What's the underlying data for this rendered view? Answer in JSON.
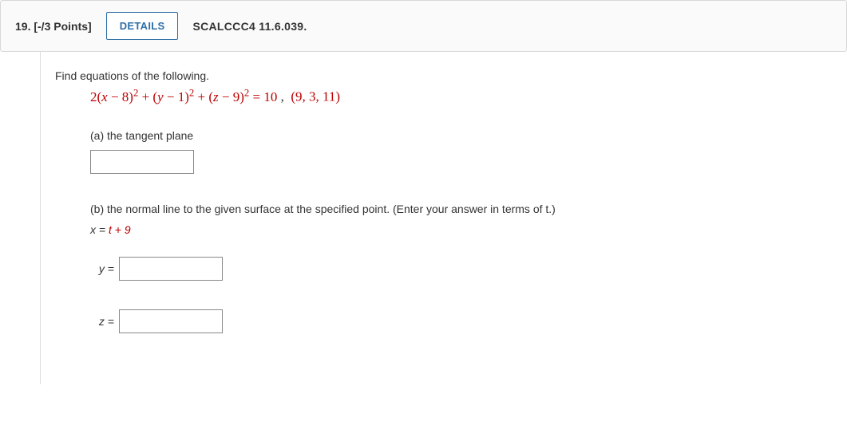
{
  "header": {
    "number": "19.",
    "points": "[-/3 Points]",
    "details_label": "DETAILS",
    "source": "SCALCCC4 11.6.039."
  },
  "instruction": "Find equations of the following.",
  "equation": {
    "lhs_html": "2(<i>x</i> − 8)<sup>2</sup> + (<i>y</i> − 1)<sup>2</sup> + (<i>z</i> − 9)<sup>2</sup> = 10",
    "point": "(9, 3, 11)"
  },
  "parts": {
    "a": {
      "label": "(a) the tangent plane"
    },
    "b": {
      "label": "(b) the normal line to the given surface at the specified point. (Enter your answer in terms of t.)",
      "given_lhs": "x = ",
      "given_rhs": "t + 9",
      "y_lhs": "y =",
      "z_lhs": "z ="
    }
  }
}
